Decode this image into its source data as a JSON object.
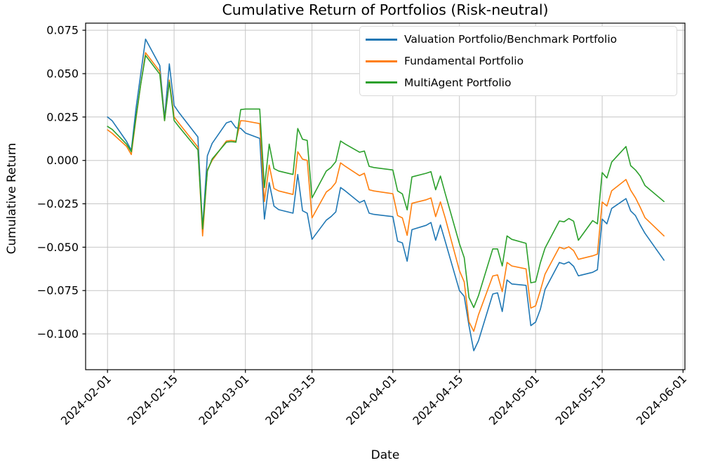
{
  "chart_data": {
    "type": "line",
    "title": "Cumulative Return of Portfolios (Risk-neutral)",
    "xlabel": "Date",
    "ylabel": "Cumulative Return",
    "grid": true,
    "legend_position": "upper right",
    "ylim": [
      -0.1206,
      0.0791
    ],
    "xlim_days": [
      -4.6,
      121.4
    ],
    "y_ticks": [
      0.075,
      0.05,
      0.025,
      0.0,
      -0.025,
      -0.05,
      -0.075,
      -0.1
    ],
    "y_tick_labels": [
      "0.075",
      "0.050",
      "0.025",
      "0.000",
      "−0.025",
      "−0.050",
      "−0.075",
      "−0.100"
    ],
    "x_ticks": [
      "2024-02-01",
      "2024-02-15",
      "2024-03-01",
      "2024-03-15",
      "2024-04-01",
      "2024-04-15",
      "2024-05-01",
      "2024-05-15",
      "2024-06-01"
    ],
    "x": [
      "2024-02-01",
      "2024-02-02",
      "2024-02-05",
      "2024-02-06",
      "2024-02-07",
      "2024-02-08",
      "2024-02-09",
      "2024-02-12",
      "2024-02-13",
      "2024-02-14",
      "2024-02-15",
      "2024-02-16",
      "2024-02-20",
      "2024-02-21",
      "2024-02-22",
      "2024-02-23",
      "2024-02-26",
      "2024-02-27",
      "2024-02-28",
      "2024-02-29",
      "2024-03-01",
      "2024-03-04",
      "2024-03-05",
      "2024-03-06",
      "2024-03-07",
      "2024-03-08",
      "2024-03-11",
      "2024-03-12",
      "2024-03-13",
      "2024-03-14",
      "2024-03-15",
      "2024-03-18",
      "2024-03-19",
      "2024-03-20",
      "2024-03-21",
      "2024-03-22",
      "2024-03-25",
      "2024-03-26",
      "2024-03-27",
      "2024-03-28",
      "2024-04-01",
      "2024-04-02",
      "2024-04-03",
      "2024-04-04",
      "2024-04-05",
      "2024-04-08",
      "2024-04-09",
      "2024-04-10",
      "2024-04-11",
      "2024-04-12",
      "2024-04-15",
      "2024-04-16",
      "2024-04-17",
      "2024-04-18",
      "2024-04-19",
      "2024-04-22",
      "2024-04-23",
      "2024-04-24",
      "2024-04-25",
      "2024-04-26",
      "2024-04-29",
      "2024-04-30",
      "2024-05-01",
      "2024-05-02",
      "2024-05-03",
      "2024-05-06",
      "2024-05-07",
      "2024-05-08",
      "2024-05-09",
      "2024-05-10",
      "2024-05-13",
      "2024-05-14",
      "2024-05-15",
      "2024-05-16",
      "2024-05-17",
      "2024-05-20",
      "2024-05-21",
      "2024-05-22",
      "2024-05-23",
      "2024-05-24",
      "2024-05-28"
    ],
    "series": [
      {
        "name": "Valuation Portfolio/Benchmark Portfolio",
        "color": "#1f77b4",
        "values": [
          0.025,
          0.0228,
          0.011,
          0.0058,
          0.03,
          0.05,
          0.0699,
          0.0547,
          0.0243,
          0.0556,
          0.0317,
          0.0277,
          0.0135,
          -0.039,
          0.0027,
          0.0098,
          0.0216,
          0.0226,
          0.0188,
          0.0185,
          0.0158,
          0.0127,
          -0.0338,
          -0.0128,
          -0.0263,
          -0.0284,
          -0.0304,
          -0.0081,
          -0.029,
          -0.0304,
          -0.0455,
          -0.0344,
          -0.0324,
          -0.0297,
          -0.0156,
          -0.0176,
          -0.0243,
          -0.023,
          -0.0304,
          -0.0311,
          -0.0324,
          -0.0466,
          -0.0475,
          -0.0581,
          -0.0399,
          -0.0374,
          -0.0358,
          -0.046,
          -0.0372,
          -0.0466,
          -0.075,
          -0.0783,
          -0.0952,
          -0.1097,
          -0.104,
          -0.077,
          -0.0763,
          -0.0871,
          -0.0689,
          -0.0712,
          -0.072,
          -0.0952,
          -0.0932,
          -0.0858,
          -0.0743,
          -0.0588,
          -0.0597,
          -0.0585,
          -0.061,
          -0.0665,
          -0.0645,
          -0.063,
          -0.0338,
          -0.0365,
          -0.0277,
          -0.022,
          -0.0291,
          -0.0318,
          -0.0372,
          -0.042,
          -0.0575
        ]
      },
      {
        "name": "Fundamental Portfolio",
        "color": "#ff7f0e",
        "values": [
          0.0176,
          0.0156,
          0.0081,
          0.0034,
          0.024,
          0.044,
          0.0621,
          0.0513,
          0.0229,
          0.0463,
          0.025,
          0.0215,
          0.0077,
          -0.0435,
          -0.0054,
          0.0,
          0.0112,
          0.0115,
          0.0111,
          0.0229,
          0.0227,
          0.0212,
          -0.0237,
          -0.0027,
          -0.0162,
          -0.0176,
          -0.0196,
          0.005,
          0.0007,
          0.0,
          -0.0331,
          -0.0182,
          -0.0162,
          -0.0128,
          -0.0014,
          -0.0034,
          -0.0088,
          -0.0074,
          -0.0169,
          -0.0176,
          -0.0192,
          -0.0318,
          -0.0331,
          -0.0432,
          -0.0247,
          -0.0227,
          -0.0216,
          -0.0324,
          -0.0239,
          -0.0331,
          -0.0635,
          -0.07,
          -0.093,
          -0.0985,
          -0.089,
          -0.0666,
          -0.066,
          -0.0756,
          -0.0588,
          -0.0608,
          -0.0625,
          -0.0851,
          -0.0838,
          -0.075,
          -0.0655,
          -0.05,
          -0.051,
          -0.0498,
          -0.052,
          -0.057,
          -0.055,
          -0.054,
          -0.024,
          -0.0263,
          -0.0175,
          -0.011,
          -0.0172,
          -0.0215,
          -0.027,
          -0.033,
          -0.0435
        ]
      },
      {
        "name": "MultiAgent Portfolio",
        "color": "#2ca02c",
        "values": [
          0.0196,
          0.0178,
          0.0094,
          0.005,
          0.025,
          0.044,
          0.0605,
          0.0497,
          0.0229,
          0.0452,
          0.023,
          0.0195,
          0.0061,
          -0.0395,
          -0.0061,
          0.0008,
          0.0105,
          0.0108,
          0.0105,
          0.0293,
          0.0296,
          0.0296,
          -0.0156,
          0.0094,
          -0.0047,
          -0.0061,
          -0.0081,
          0.0184,
          0.0122,
          0.0115,
          -0.0216,
          -0.0061,
          -0.0041,
          -0.0007,
          0.0112,
          0.0094,
          0.0047,
          0.0054,
          -0.0034,
          -0.0041,
          -0.0055,
          -0.0176,
          -0.0193,
          -0.0285,
          -0.0095,
          -0.0074,
          -0.0065,
          -0.0169,
          -0.009,
          -0.019,
          -0.048,
          -0.056,
          -0.079,
          -0.0848,
          -0.078,
          -0.051,
          -0.051,
          -0.0608,
          -0.0435,
          -0.0455,
          -0.0478,
          -0.0705,
          -0.07,
          -0.059,
          -0.0505,
          -0.0349,
          -0.0354,
          -0.0335,
          -0.035,
          -0.046,
          -0.0347,
          -0.0365,
          -0.007,
          -0.0101,
          -0.001,
          0.008,
          -0.003,
          -0.0055,
          -0.009,
          -0.0145,
          -0.0237
        ]
      }
    ]
  }
}
